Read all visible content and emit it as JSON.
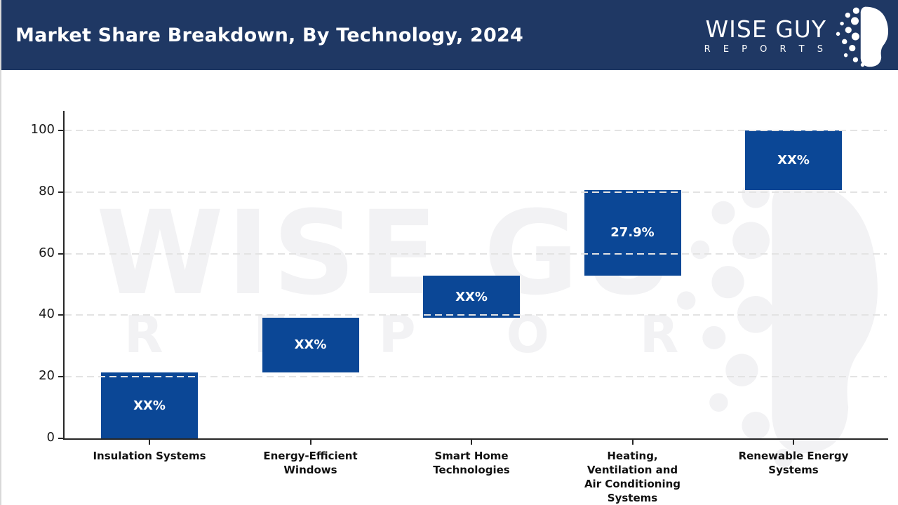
{
  "header": {
    "title": "Market Share Breakdown, By Technology, 2024",
    "logo": {
      "line1": "WISE GUY",
      "line2": "R E P O R T S"
    }
  },
  "watermark": {
    "line1": "WISE GU",
    "line2": "R E P O R T"
  },
  "colors": {
    "header_bg": "#1F3864",
    "bar": "#0B4796",
    "grid": "#e3e3e3",
    "axis": "#262626",
    "bar_label_text": "#ffffff",
    "watermark": "#f2f2f4"
  },
  "chart_data": {
    "type": "bar",
    "subtype": "waterfall",
    "title": "Market Share Breakdown, By Technology, 2024",
    "xlabel": "",
    "ylabel": "",
    "ylim": [
      0,
      110
    ],
    "yticks": [
      0,
      20,
      40,
      60,
      80,
      100
    ],
    "grid": "horizontal-dashed",
    "legend": "none",
    "categories": [
      "Insulation Systems",
      "Energy-Efficient\nWindows",
      "Smart Home\nTechnologies",
      "Heating,\nVentilation and\nAir Conditioning\nSystems",
      "Renewable Energy\nSystems"
    ],
    "segments": [
      {
        "category": "Insulation Systems",
        "start": 0,
        "end": 21.4,
        "label": "XX%"
      },
      {
        "category": "Energy-Efficient Windows",
        "start": 21.4,
        "end": 39.2,
        "label": "XX%"
      },
      {
        "category": "Smart Home Technologies",
        "start": 39.2,
        "end": 52.8,
        "label": "XX%"
      },
      {
        "category": "Heating, Ventilation and Air Conditioning Systems",
        "start": 52.8,
        "end": 80.7,
        "label": "27.9%"
      },
      {
        "category": "Renewable Energy Systems",
        "start": 80.7,
        "end": 100,
        "label": "XX%"
      }
    ]
  }
}
